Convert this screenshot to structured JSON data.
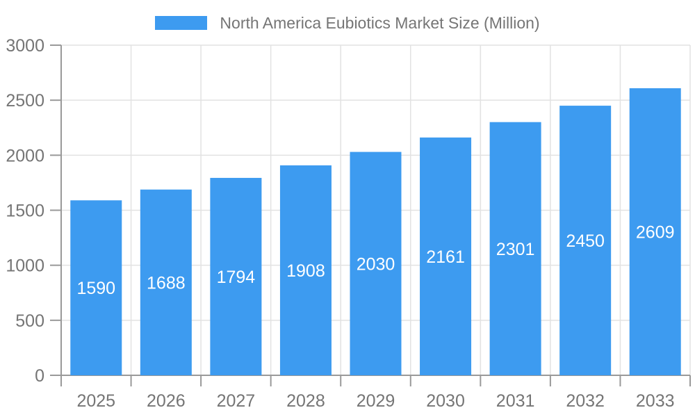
{
  "legend": {
    "label": "North America Eubiotics Market Size (Million)"
  },
  "chart_data": {
    "type": "bar",
    "title": "North America Eubiotics Market Size (Million)",
    "categories": [
      "2025",
      "2026",
      "2027",
      "2028",
      "2029",
      "2030",
      "2031",
      "2032",
      "2033"
    ],
    "values": [
      1590,
      1688,
      1794,
      1908,
      2030,
      2161,
      2301,
      2450,
      2609
    ],
    "xlabel": "",
    "ylabel": "",
    "ylim": [
      0,
      3000
    ],
    "ytick_step": 500,
    "ytick_labels": [
      "0",
      "500",
      "1000",
      "1500",
      "2000",
      "2500",
      "3000"
    ],
    "grid": true,
    "legend_position": "top",
    "value_label_position": "inside-center",
    "colors": {
      "bar": "#3d9bf0",
      "value_label": "#ffffff",
      "axis_text": "#757575",
      "grid_line": "#e2e2e2",
      "axis_line": "#999999",
      "background": "#ffffff"
    }
  }
}
